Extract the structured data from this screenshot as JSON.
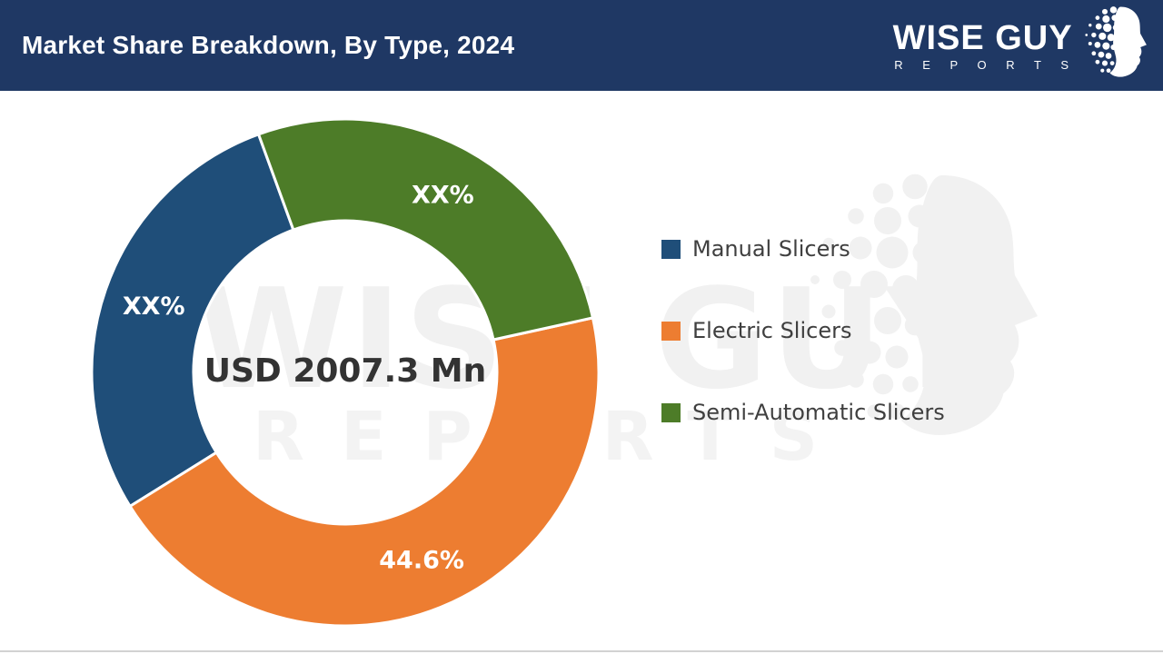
{
  "header": {
    "title": "Market Share Breakdown, By Type, 2024",
    "logo": {
      "name_line": "WISE GUY",
      "sub_line": "R E P O R T S"
    }
  },
  "watermark": {
    "line1": "WISE GUY",
    "line2": "REPORTS"
  },
  "chart_data": {
    "type": "pie",
    "subtype": "donut",
    "title": "Market Share Breakdown, By Type, 2024",
    "center_label": "USD 2007.3 Mn",
    "start_angle_deg": 110,
    "direction": "counterclockwise",
    "legend_position": "right",
    "segments": [
      {
        "name": "Manual Slicers",
        "display_label": "XX%",
        "value_pct": 28.3,
        "color": "#1f4e79"
      },
      {
        "name": "Electric Slicers",
        "display_label": "44.6%",
        "value_pct": 44.6,
        "color": "#ed7d31"
      },
      {
        "name": "Semi-Automatic Slicers",
        "display_label": "XX%",
        "value_pct": 27.1,
        "color": "#4d7c28"
      }
    ]
  },
  "colors": {
    "header_bg": "#1f3864",
    "watermark": "#f1f1f1",
    "center_text": "#333333",
    "legend_text": "#3f3f3f"
  }
}
